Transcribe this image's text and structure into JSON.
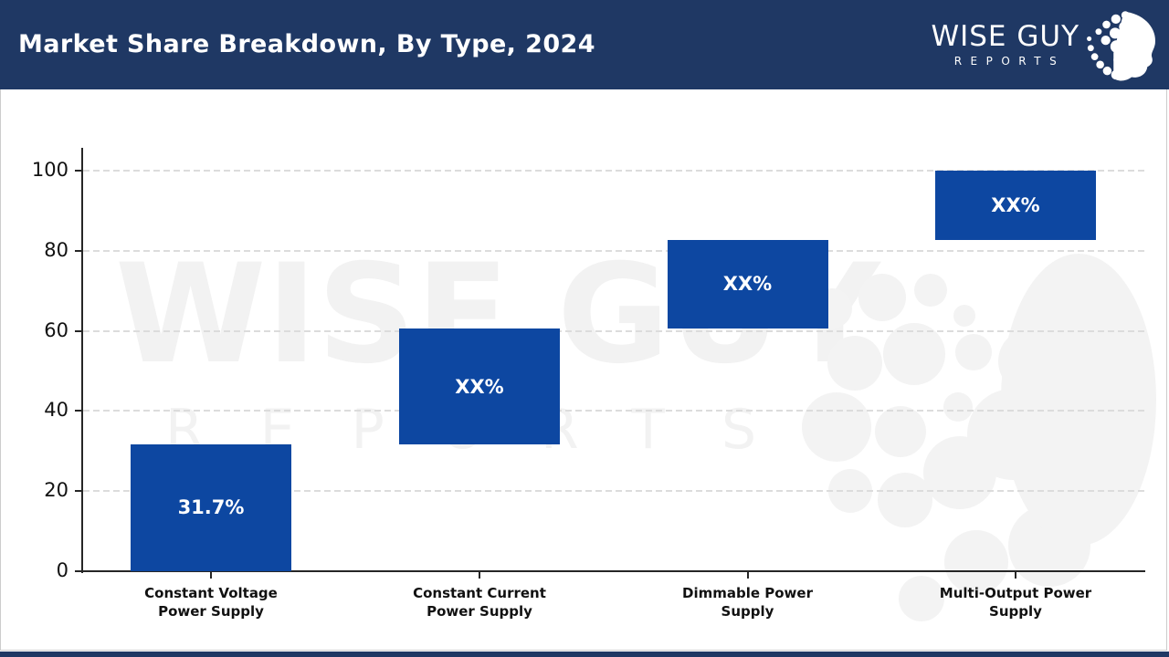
{
  "header": {
    "title": "Market Share Breakdown, By Type, 2024",
    "logo": {
      "main": "WISE GUY",
      "sub": "REPORTS"
    }
  },
  "watermark": {
    "main": "WISE GUY",
    "sub": "REPORTS"
  },
  "colors": {
    "header_bg": "#1f3864",
    "bar_fill": "#0d47a1",
    "bar_label": "#ffffff",
    "axis": "#262626",
    "gridline": "#dcdcdc",
    "watermark": "#f2f2f2"
  },
  "chart_data": {
    "type": "bar",
    "subtype": "waterfall-stacked-segments",
    "title": "Market Share Breakdown, By Type, 2024",
    "categories": [
      [
        "Constant Voltage",
        "Power Supply"
      ],
      [
        "Constant Current",
        "Power Supply"
      ],
      [
        "Dimmable Power",
        "Supply"
      ],
      [
        "Multi-Output Power",
        "Supply"
      ]
    ],
    "segments": [
      {
        "category": "Constant Voltage Power Supply",
        "start": 0,
        "end": 31.7,
        "label": "31.7%"
      },
      {
        "category": "Constant Current Power Supply",
        "start": 31.7,
        "end": 60.5,
        "label": "XX%"
      },
      {
        "category": "Dimmable Power Supply",
        "start": 60.5,
        "end": 82.8,
        "label": "XX%"
      },
      {
        "category": "Multi-Output Power Supply",
        "start": 82.8,
        "end": 100,
        "label": "XX%"
      }
    ],
    "xlabel": "",
    "ylabel": "",
    "ylim": [
      0,
      100
    ],
    "yticks": [
      0,
      20,
      40,
      60,
      80,
      100
    ],
    "grid": "horizontal-dashed",
    "legend": "none"
  }
}
